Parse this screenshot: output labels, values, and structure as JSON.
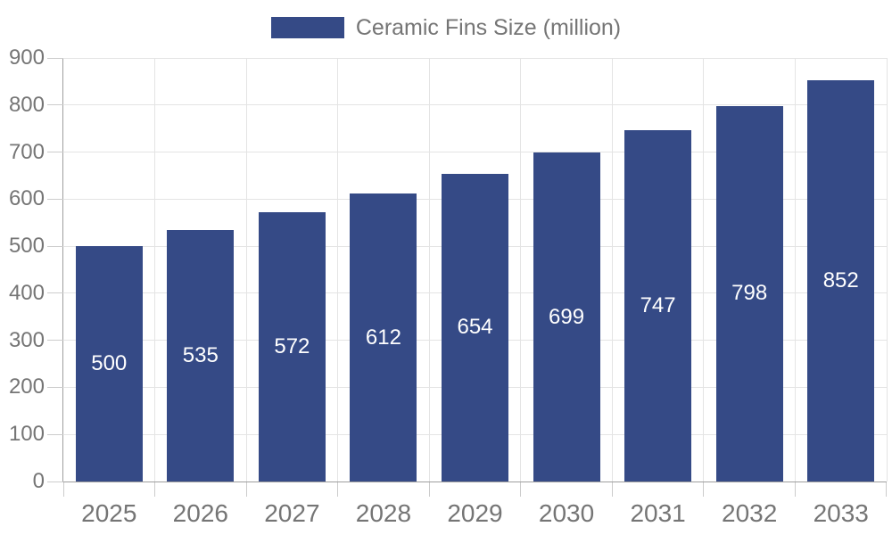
{
  "chart_data": {
    "type": "bar",
    "title": "",
    "series_name": "Ceramic Fins Size (million)",
    "categories": [
      "2025",
      "2026",
      "2027",
      "2028",
      "2029",
      "2030",
      "2031",
      "2032",
      "2033"
    ],
    "values": [
      500,
      535,
      572,
      612,
      654,
      699,
      747,
      798,
      852
    ],
    "xlabel": "",
    "ylabel": "",
    "ylim": [
      0,
      900
    ],
    "ytick_step": 100,
    "yticks": [
      0,
      100,
      200,
      300,
      400,
      500,
      600,
      700,
      800,
      900
    ],
    "grid": "both",
    "legend_position": "top-center",
    "value_labels": "inside-center-white",
    "colors": {
      "bar": "#354a86",
      "value_label": "#ffffff",
      "axis_text": "#757575",
      "legend_text": "#757575",
      "axis_line": "#9e9e9e",
      "tick_line": "#cccccc",
      "gridline": "#e4e4e4",
      "background": "#ffffff"
    }
  }
}
